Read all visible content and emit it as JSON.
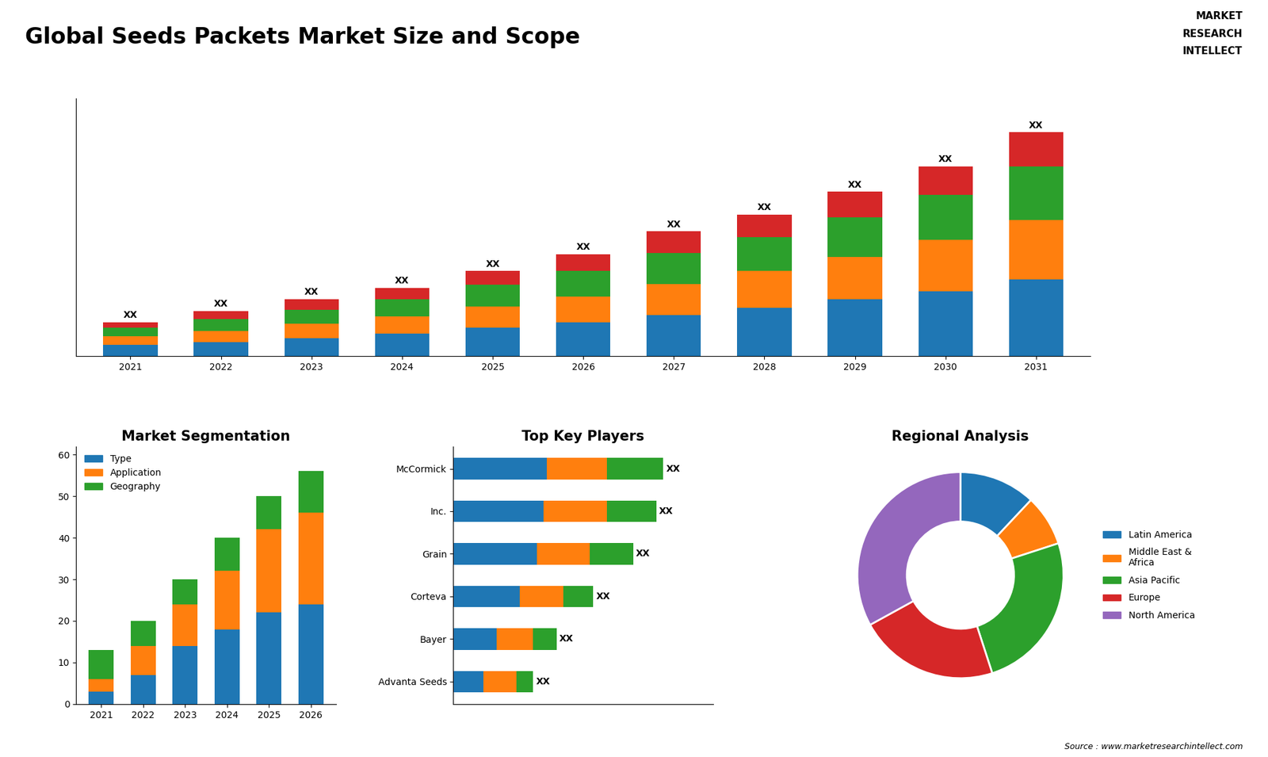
{
  "title": "Global Seeds Packets Market Size and Scope",
  "annotations": [
    "MARKET",
    "RESEARCH",
    "INTELLECT",
    "Source : www.marketresearchintellect.com"
  ],
  "chart_data": [
    {
      "type": "bar",
      "stacked": true,
      "categories": [
        "2021",
        "2022",
        "2023",
        "2024",
        "2025",
        "2026",
        "2027",
        "2028",
        "2029",
        "2030",
        "2031"
      ],
      "series": [
        {
          "values": [
            2.0,
            2.5,
            3.2,
            4.0,
            5.0,
            6.0,
            7.2,
            8.5,
            10.0,
            11.5,
            13.5
          ]
        },
        {
          "values": [
            1.5,
            2.0,
            2.5,
            3.0,
            3.8,
            4.5,
            5.5,
            6.5,
            7.5,
            9.0,
            10.5
          ]
        },
        {
          "values": [
            1.5,
            2.0,
            2.5,
            3.0,
            3.8,
            4.5,
            5.5,
            6.0,
            7.0,
            8.0,
            9.5
          ]
        },
        {
          "values": [
            1.0,
            1.5,
            1.8,
            2.0,
            2.4,
            3.0,
            3.8,
            4.0,
            4.5,
            5.0,
            6.0
          ]
        }
      ],
      "ylim": [
        0,
        45.5
      ],
      "tick_labels": "x",
      "annotations": [
        "XX",
        "XX",
        "XX",
        "XX",
        "XX",
        "XX",
        "XX",
        "XX",
        "XX",
        "XX",
        "XX"
      ]
    },
    {
      "type": "bar",
      "stacked": true,
      "title": "Market Segmentation",
      "categories": [
        "2021",
        "2022",
        "2023",
        "2024",
        "2025",
        "2026"
      ],
      "series": [
        {
          "name": "Type",
          "values": [
            3,
            7,
            14,
            18,
            22,
            24
          ]
        },
        {
          "name": "Application",
          "values": [
            3,
            7,
            10,
            14,
            20,
            22
          ]
        },
        {
          "name": "Geography",
          "values": [
            7,
            6,
            6,
            8,
            8,
            10
          ]
        }
      ],
      "ylim": [
        0,
        62
      ],
      "yticks": [
        0,
        10,
        20,
        30,
        40,
        50,
        60
      ],
      "legend": "upper left"
    },
    {
      "type": "bar",
      "stacked": true,
      "orientation": "horizontal",
      "title": "Top Key Players",
      "categories": [
        "McCormick",
        "Inc.",
        "Grain",
        "Corteva",
        "Bayer",
        "Advanta Seeds"
      ],
      "series": [
        {
          "values": [
            28,
            27,
            25,
            20,
            13,
            9
          ]
        },
        {
          "values": [
            18,
            19,
            16,
            13,
            11,
            10
          ]
        },
        {
          "values": [
            17,
            15,
            13,
            9,
            7,
            5
          ]
        }
      ],
      "xlim": [
        0,
        78
      ],
      "tick_labels": "y",
      "annotations": [
        "XX",
        "XX",
        "XX",
        "XX",
        "XX",
        "XX"
      ]
    },
    {
      "type": "pie",
      "title": "Regional Analysis",
      "categories": [
        "Latin America",
        "Middle East &\nAfrica",
        "Asia Pacific",
        "Europe",
        "North America"
      ],
      "values": [
        12,
        8,
        25,
        22,
        33
      ],
      "legend": "center left"
    }
  ]
}
